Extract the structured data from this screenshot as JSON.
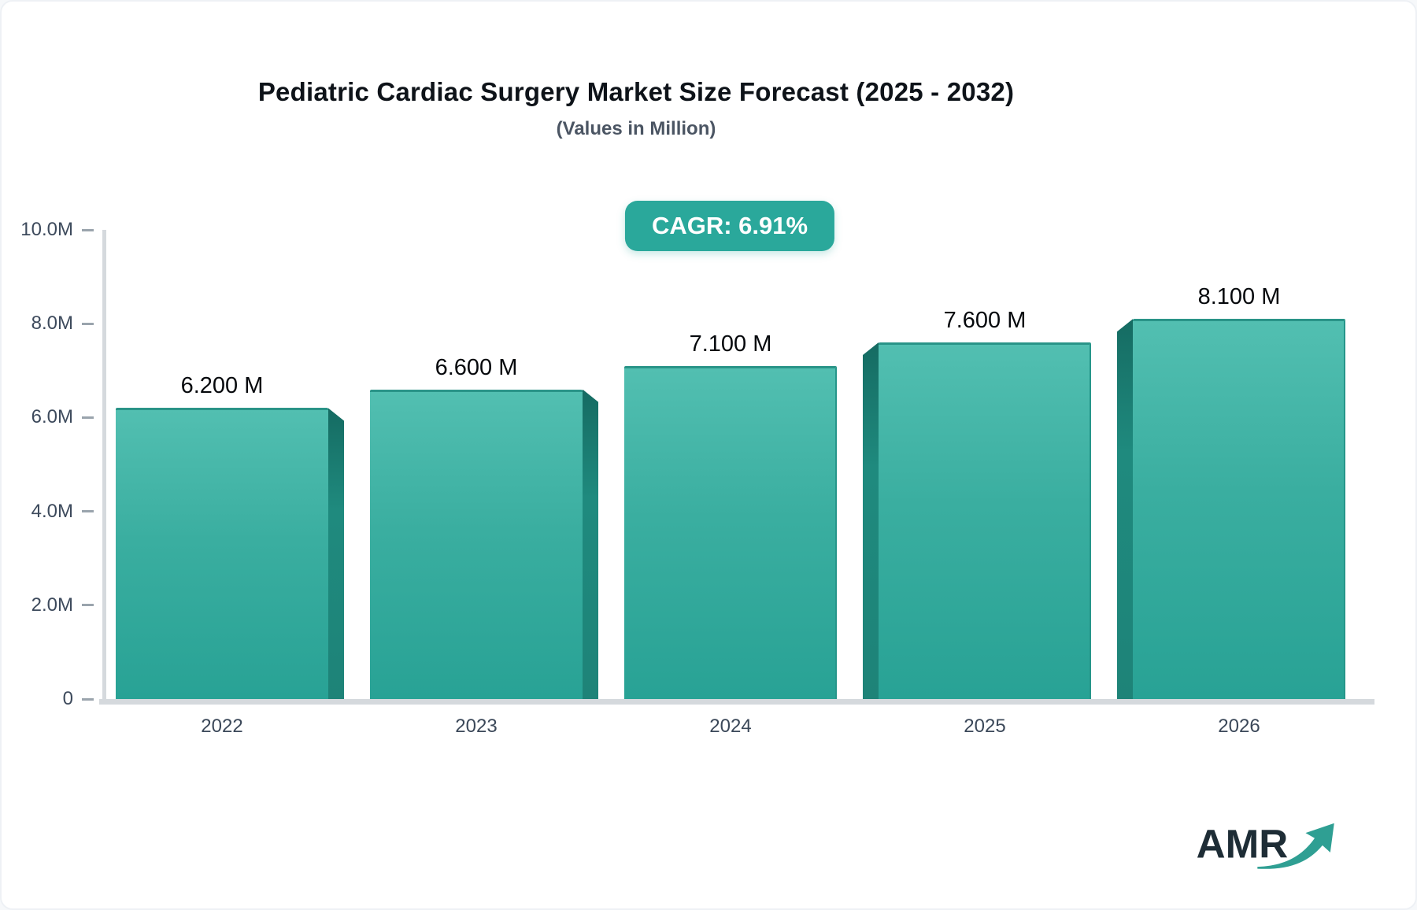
{
  "title": "Pediatric Cardiac Surgery Market Size Forecast (2025 - 2032)",
  "subtitle": "(Values in Million)",
  "badge": {
    "label": "CAGR: 6.91%"
  },
  "logo": {
    "text": "AMR",
    "icon": "growth-arrow-icon"
  },
  "colors": {
    "accent_teal": "#2aa89b",
    "bar_top": "#52bfb1",
    "bar_bottom": "#28a295",
    "bar_side": "#1e8378",
    "axis": "#d5d9dd",
    "tick_text": "#3d4a5c",
    "title_text": "#0e1319",
    "subtitle_text": "#4b5563",
    "logo_text": "#1e2d36"
  },
  "chart_data": {
    "type": "bar",
    "title": "Pediatric Cardiac Surgery Market Size Forecast (2025 - 2032)",
    "subtitle": "(Values in Million)",
    "unit": "Million",
    "categories": [
      "2022",
      "2023",
      "2024",
      "2025",
      "2026"
    ],
    "values": [
      6.2,
      6.6,
      7.1,
      7.6,
      8.1
    ],
    "bar_labels": [
      "6.200 M",
      "6.600 M",
      "7.100 M",
      "7.600 M",
      "8.100 M"
    ],
    "bevels": [
      "right",
      "right",
      "none",
      "left",
      "left"
    ],
    "xlabel": "",
    "ylabel": "",
    "ylim": [
      0,
      10
    ],
    "yticks": [
      {
        "value": 10,
        "label": "10.0M"
      },
      {
        "value": 8,
        "label": "8.0M"
      },
      {
        "value": 6,
        "label": "6.0M"
      },
      {
        "value": 4,
        "label": "4.0M"
      },
      {
        "value": 2,
        "label": "2.0M"
      },
      {
        "value": 0,
        "label": "0"
      }
    ],
    "grid": false,
    "legend": false,
    "annotations": [
      "CAGR: 6.91%"
    ]
  }
}
